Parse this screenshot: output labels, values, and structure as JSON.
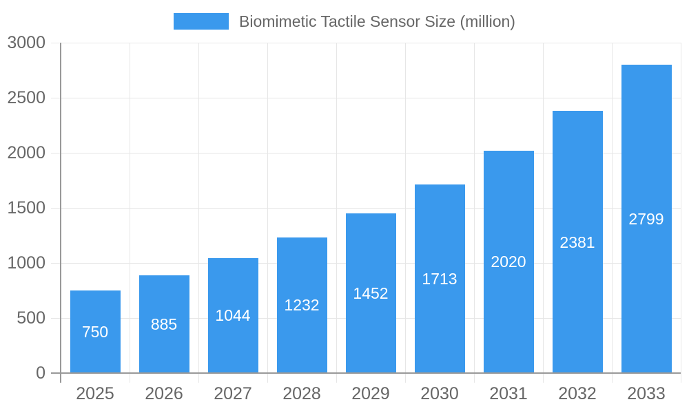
{
  "legend": {
    "label": "Biomimetic Tactile Sensor Size (million)"
  },
  "chart_data": {
    "type": "bar",
    "title": "Biomimetic Tactile Sensor Size (million)",
    "categories": [
      "2025",
      "2026",
      "2027",
      "2028",
      "2029",
      "2030",
      "2031",
      "2032",
      "2033"
    ],
    "values": [
      750,
      885,
      1044,
      1232,
      1452,
      1713,
      2020,
      2381,
      2799
    ],
    "xlabel": "",
    "ylabel": "",
    "ylim": [
      0,
      3000
    ],
    "yticks": [
      0,
      500,
      1000,
      1500,
      2000,
      2500,
      3000
    ],
    "grid": true,
    "legend_position": "top-center",
    "value_labels": "inside-center",
    "colors": {
      "bar": "#3A99ED",
      "value_label": "#FFFFFF",
      "axis_text": "#666666",
      "grid_line": "#E6E6E6",
      "axis_line": "#999999",
      "background": "#FFFFFF"
    }
  }
}
